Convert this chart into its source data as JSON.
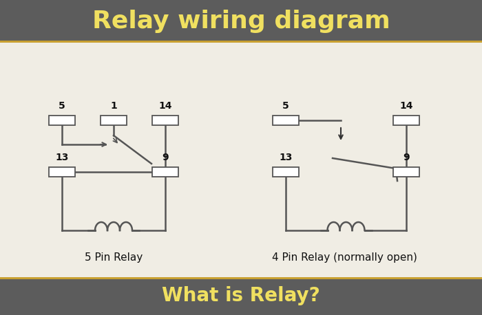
{
  "title": "Relay wiring diagram",
  "subtitle": "What is Relay?",
  "title_bg": "#5c5c5c",
  "subtitle_bg": "#5c5c5c",
  "main_bg": "#f0ede4",
  "title_color": "#f0e060",
  "subtitle_color": "#f0e060",
  "line_color": "#555555",
  "text_color": "#111111",
  "label1": "5 Pin Relay",
  "label2": "4 Pin Relay (normally open)"
}
